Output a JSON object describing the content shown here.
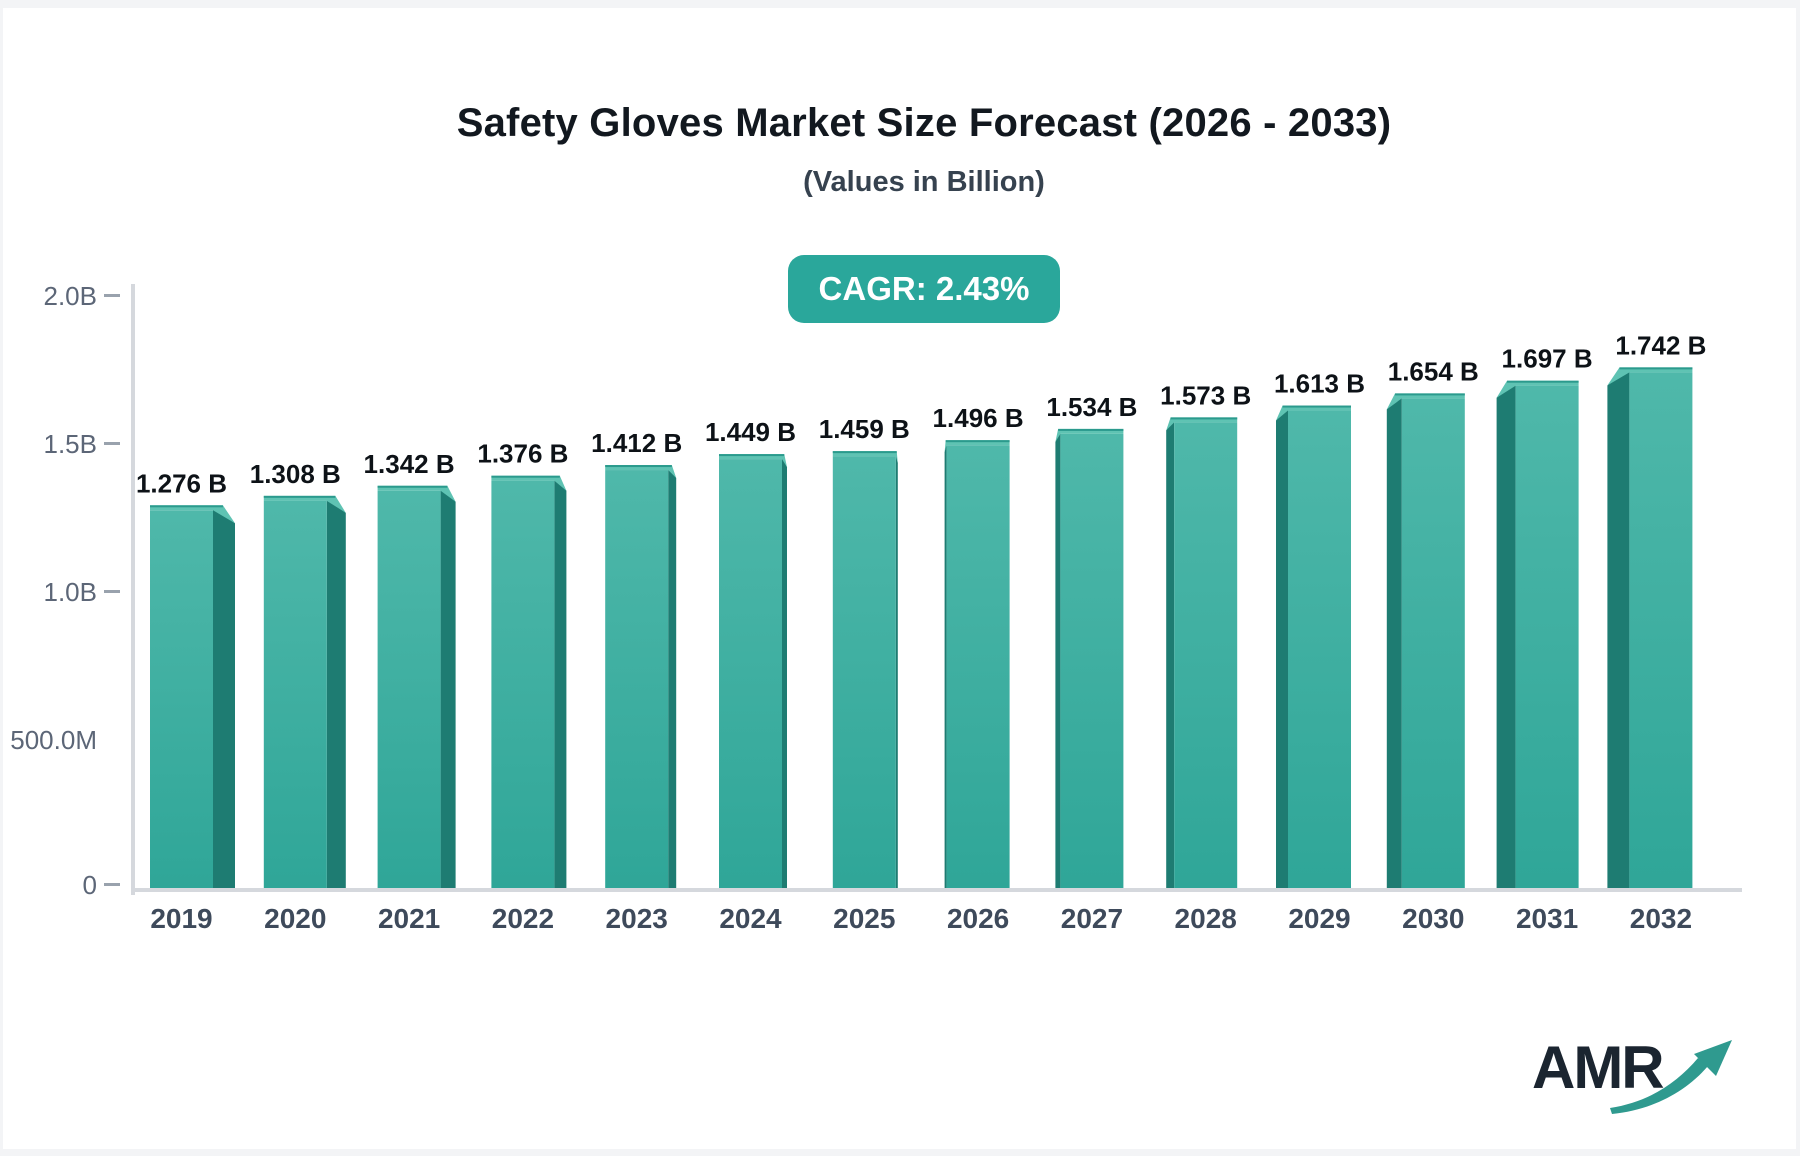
{
  "title": "Safety Gloves Market Size Forecast (2026 - 2033)",
  "subtitle": "(Values in Billion)",
  "badge": {
    "label": "CAGR: 2.43%"
  },
  "logo": {
    "text": "AMR",
    "arrow_icon": "growth-arrow-icon"
  },
  "chart_data": {
    "type": "bar",
    "style": "3d-column",
    "title": "Safety Gloves Market Size Forecast (2026 - 2033)",
    "subtitle": "(Values in Billion)",
    "cagr": "CAGR: 2.43%",
    "categories": [
      "2019",
      "2020",
      "2021",
      "2022",
      "2023",
      "2024",
      "2025",
      "2026",
      "2027",
      "2028",
      "2029",
      "2030",
      "2031",
      "2032"
    ],
    "values": [
      1.276,
      1.308,
      1.342,
      1.376,
      1.412,
      1.449,
      1.459,
      1.496,
      1.534,
      1.573,
      1.613,
      1.654,
      1.697,
      1.742
    ],
    "labels": [
      "1.276 B",
      "1.308 B",
      "1.342 B",
      "1.376 B",
      "1.412 B",
      "1.449 B",
      "1.459 B",
      "1.496 B",
      "1.534 B",
      "1.573 B",
      "1.613 B",
      "1.654 B",
      "1.697 B",
      "1.742 B"
    ],
    "xlabel": "",
    "ylabel": "",
    "ylim": [
      0,
      2.0
    ],
    "grid": false,
    "legend": "none",
    "y_ticks": [
      {
        "label": "2.0B",
        "value": 2.0,
        "dash": true
      },
      {
        "label": "1.5B",
        "value": 1.5,
        "dash": true
      },
      {
        "label": "1.0B",
        "value": 1.0,
        "dash": true
      },
      {
        "label": "500.0M",
        "value": 0.5,
        "dash": false
      },
      {
        "label": "0",
        "value": 0.0,
        "dash": true
      }
    ],
    "colors": {
      "bar_front_top": "#4FB8AA",
      "bar_front_bottom": "#2FA698",
      "bar_side": "#1E7C72",
      "bar_top_face": "#5FC3B3",
      "bar_top_edge": "#2B9A8D",
      "axis_line": "#D5D8DD",
      "tick_dash": "#99A2AD",
      "tick_label": "#5C6677",
      "year_label": "#3E4A5B",
      "value_label": "#0D1217",
      "title": "#12181F",
      "subtitle": "#36424F",
      "badge_bg": "#2AA79B",
      "badge_text": "#FFFFFF",
      "logo_text": "#1B2530",
      "logo_arrow": "#2F9A8F"
    }
  }
}
